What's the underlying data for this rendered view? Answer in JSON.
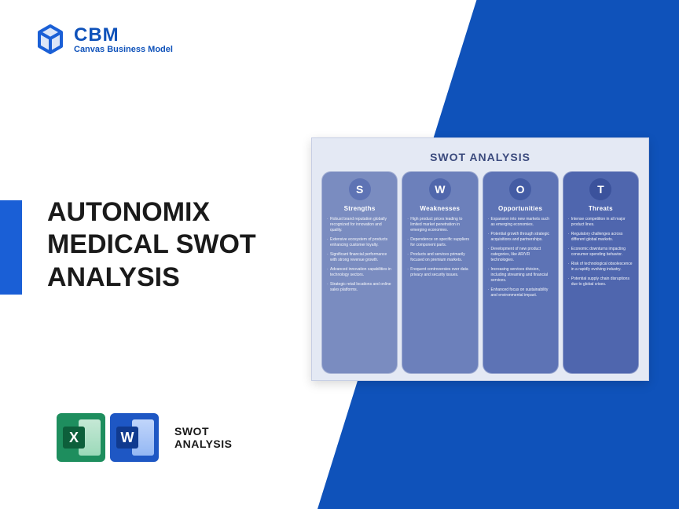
{
  "brand": {
    "acronym": "CBM",
    "tagline": "Canvas Business Model",
    "logo_color": "#1a5fd6"
  },
  "colors": {
    "diagonal": "#0f52ba",
    "left_tab": "#1a5fd6",
    "excel_bg": "#1e8e5e",
    "excel_dark": "#0d5f3b",
    "word_bg": "#1e57c4",
    "word_dark": "#103a8f",
    "panel_bg": "#e4e9f4",
    "panel_header": "#3b4a7d"
  },
  "title_lines": [
    "AUTONOMIX",
    "MEDICAL SWOT",
    "ANALYSIS"
  ],
  "title": "AUTONOMIX MEDICAL SWOT ANALYSIS",
  "apps": {
    "excel_letter": "X",
    "word_letter": "W",
    "label_l1": "SWOT",
    "label_l2": "ANALYSIS"
  },
  "swot": {
    "panel_title": "SWOT ANALYSIS",
    "columns": [
      {
        "letter": "S",
        "heading": "Strengths",
        "bg": "#7a8cc0",
        "circle": "#5e73b4",
        "items": [
          "Robust brand reputation globally recognized for innovation and quality.",
          "Extensive ecosystem of products enhancing customer loyalty.",
          "Significant financial performance with strong revenue growth.",
          "Advanced innovation capabilities in technology sectors.",
          "Strategic retail locations and online sales platforms."
        ]
      },
      {
        "letter": "W",
        "heading": "Weaknesses",
        "bg": "#6c80bb",
        "circle": "#5067ac",
        "items": [
          "High product prices leading to limited market penetration in emerging economies.",
          "Dependence on specific suppliers for component parts.",
          "Products and services primarily focused on premium markets.",
          "Frequent controversies over data privacy and security issues."
        ]
      },
      {
        "letter": "O",
        "heading": "Opportunities",
        "bg": "#5d73b5",
        "circle": "#445ca4",
        "items": [
          "Expansion into new markets such as emerging economies.",
          "Potential growth through strategic acquisitions and partnerships.",
          "Development of new product categories, like AR/VR technologies.",
          "Increasing services division, including streaming and financial services.",
          "Enhanced focus on sustainability and environmental impact."
        ]
      },
      {
        "letter": "T",
        "heading": "Threats",
        "bg": "#4f66ae",
        "circle": "#3b529c",
        "items": [
          "Intense competition in all major product lines.",
          "Regulatory challenges across different global markets.",
          "Economic downturns impacting consumer spending behavior.",
          "Risk of technological obsolescence in a rapidly evolving industry.",
          "Potential supply chain disruptions due to global crises."
        ]
      }
    ]
  }
}
